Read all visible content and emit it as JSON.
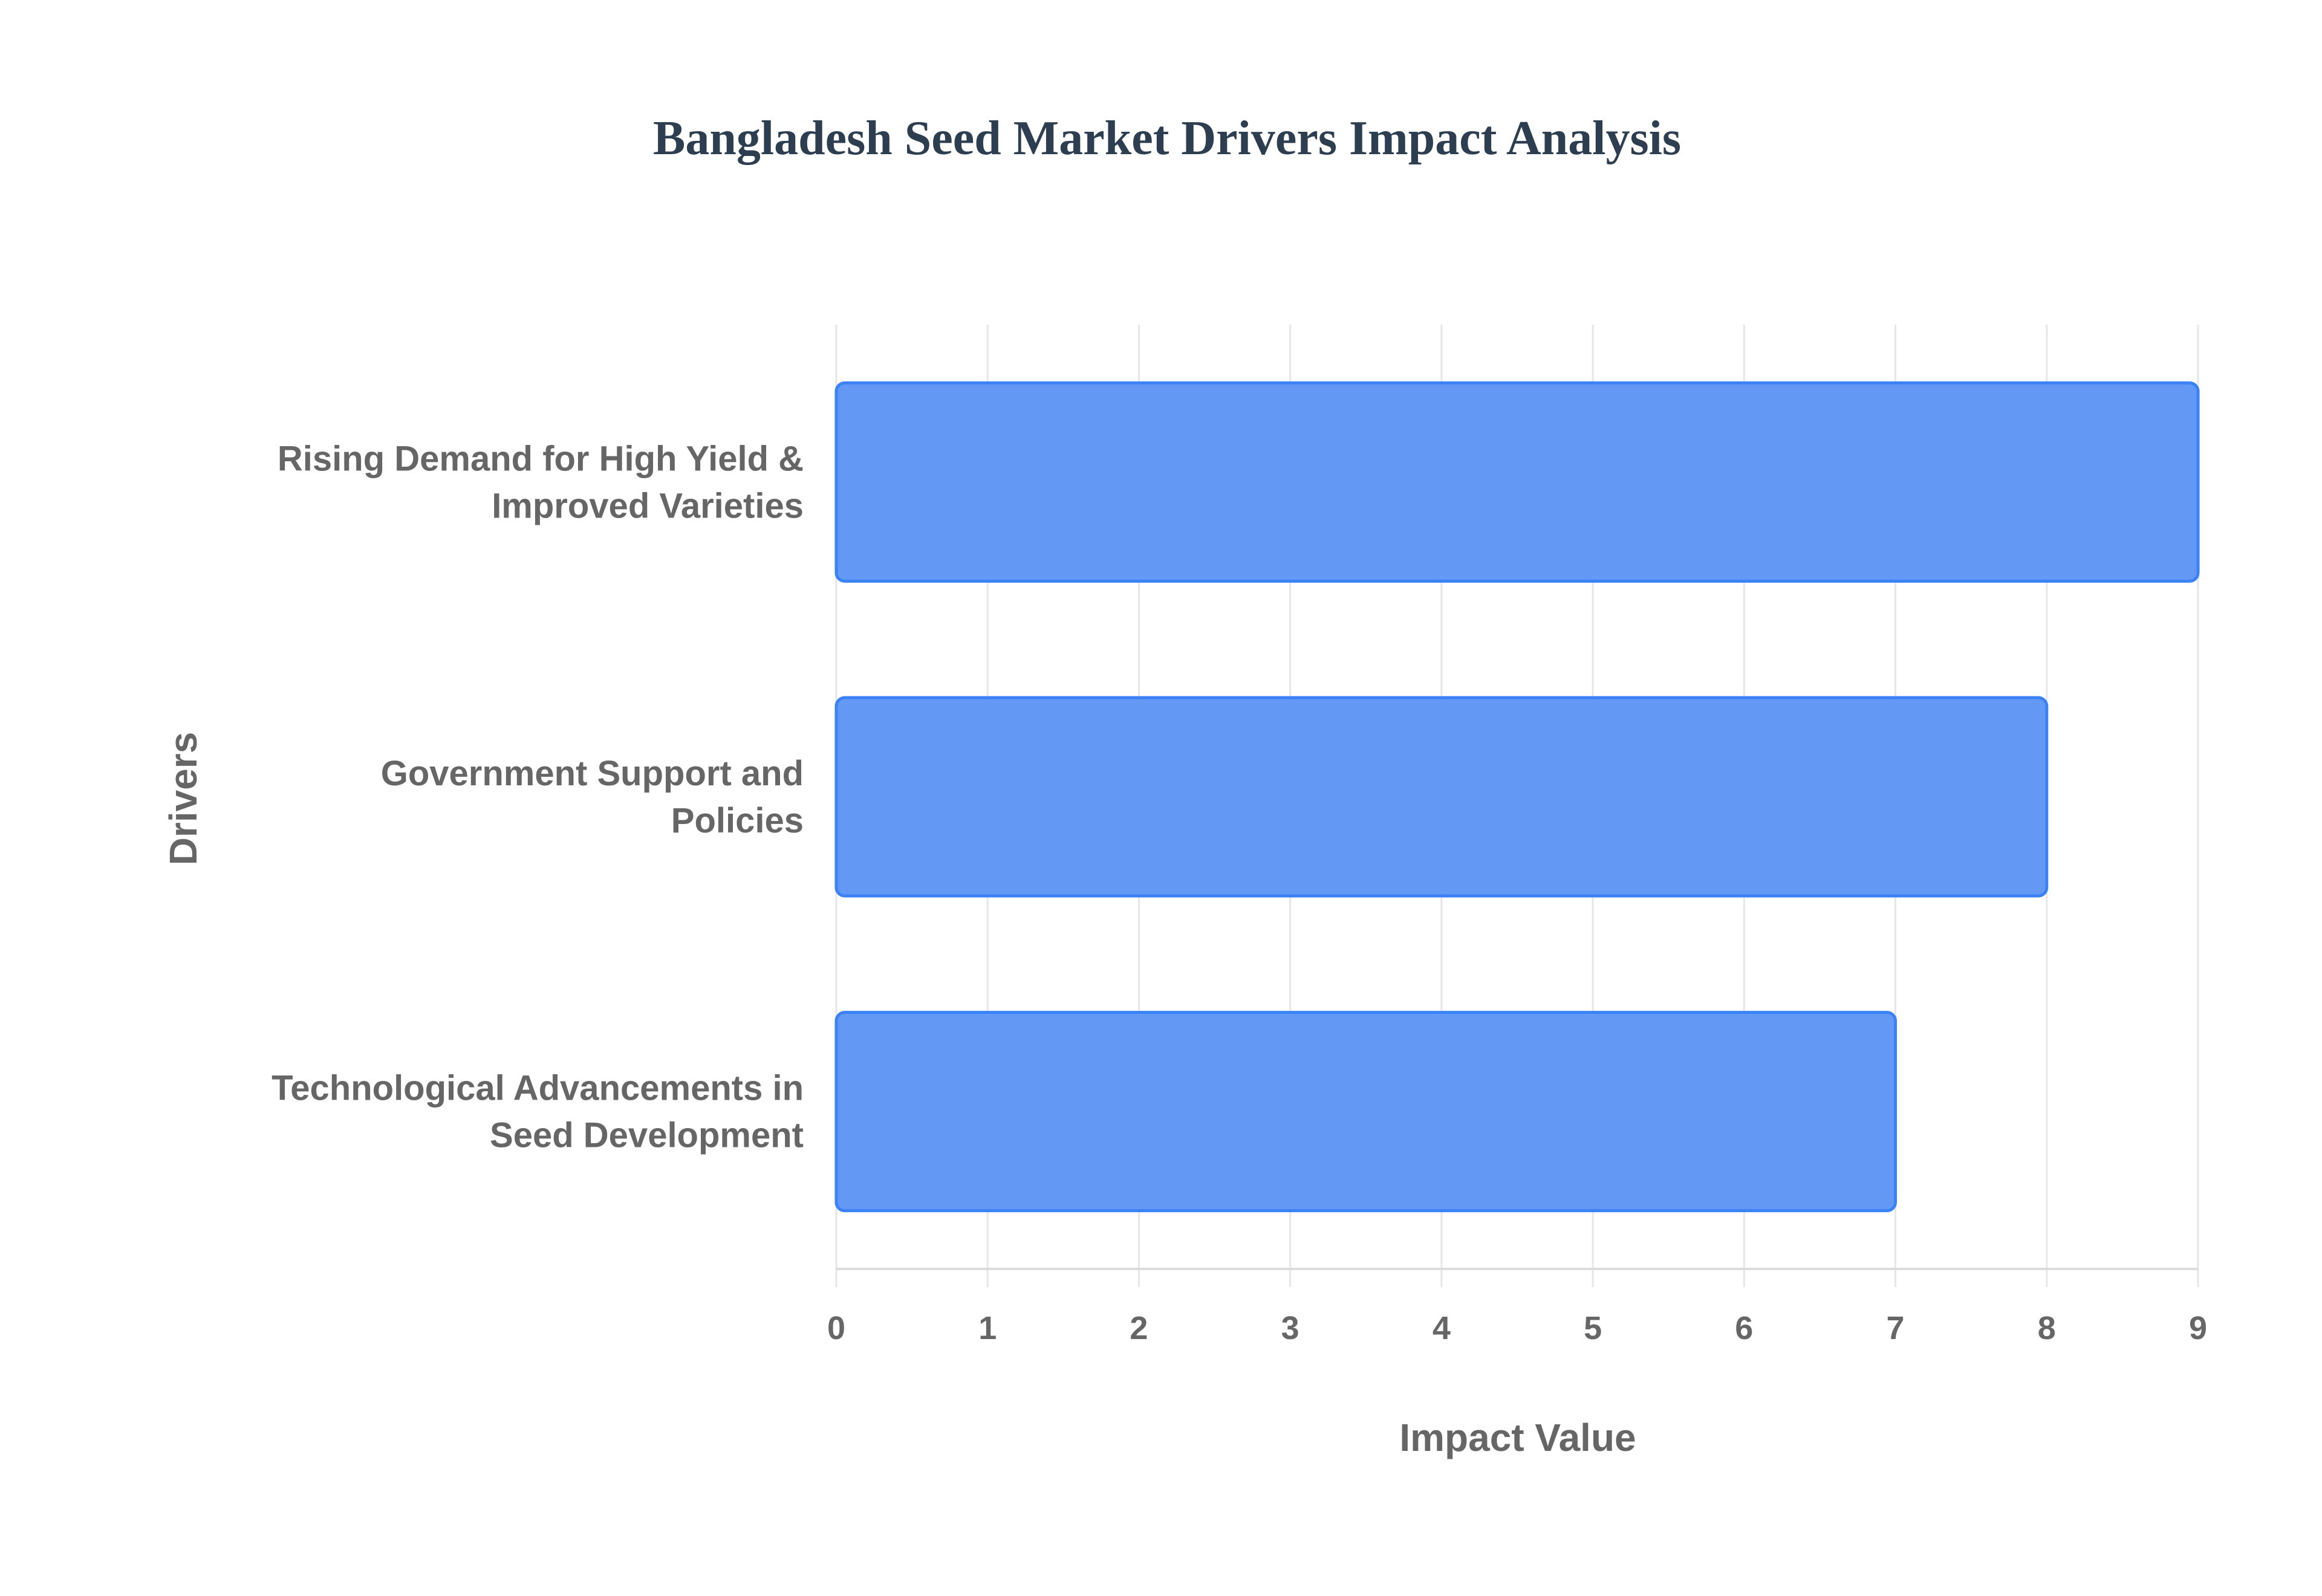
{
  "chart_data": {
    "type": "bar",
    "orientation": "horizontal",
    "title": "Bangladesh Seed Market Drivers Impact Analysis",
    "xlabel": "Impact Value",
    "ylabel": "Drivers",
    "categories": [
      [
        "Rising Demand for High Yield &",
        "Improved Varieties"
      ],
      [
        "Government Support and",
        "Policies"
      ],
      [
        "Technological Advancements in",
        "Seed Development"
      ]
    ],
    "values": [
      9,
      8,
      7
    ],
    "xlim": [
      0,
      9
    ],
    "xticks": [
      "0",
      "1",
      "2",
      "3",
      "4",
      "5",
      "6",
      "7",
      "8",
      "9"
    ],
    "grid": true,
    "colors": {
      "bar_fill": "#6399f5",
      "bar_border": "#3b82f6",
      "grid": "#e6e6e6"
    }
  }
}
